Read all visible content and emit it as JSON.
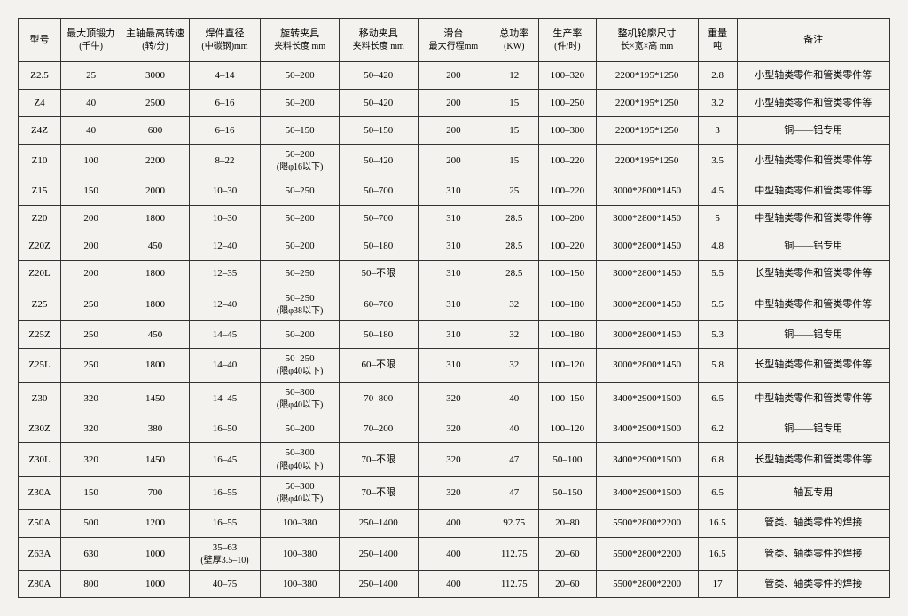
{
  "table": {
    "columns": [
      "型号",
      "最大顶锻力\n(千牛)",
      "主轴最高转速\n(转/分)",
      "焊件直径\n(中碳钢)mm",
      "旋转夹具\n夹料长度 mm",
      "移动夹具\n夹料长度 mm",
      "滑台\n最大行程mm",
      "总功率\n(KW)",
      "生产率\n(件/时)",
      "整机轮廓尺寸\n长×宽×高 mm",
      "重量\n吨",
      "备注"
    ],
    "rows": [
      [
        "Z2.5",
        "25",
        "3000",
        "4–14",
        "50–200",
        "50–420",
        "200",
        "12",
        "100–320",
        "2200*195*1250",
        "2.8",
        "小型轴类零件和管类零件等"
      ],
      [
        "Z4",
        "40",
        "2500",
        "6–16",
        "50–200",
        "50–420",
        "200",
        "15",
        "100–250",
        "2200*195*1250",
        "3.2",
        "小型轴类零件和管类零件等"
      ],
      [
        "Z4Z",
        "40",
        "600",
        "6–16",
        "50–150",
        "50–150",
        "200",
        "15",
        "100–300",
        "2200*195*1250",
        "3",
        "铜——铝专用"
      ],
      [
        "Z10",
        "100",
        "2200",
        "8–22",
        "50–200\n(限φ16以下)",
        "50–420",
        "200",
        "15",
        "100–220",
        "2200*195*1250",
        "3.5",
        "小型轴类零件和管类零件等"
      ],
      [
        "Z15",
        "150",
        "2000",
        "10–30",
        "50–250",
        "50–700",
        "310",
        "25",
        "100–220",
        "3000*2800*1450",
        "4.5",
        "中型轴类零件和管类零件等"
      ],
      [
        "Z20",
        "200",
        "1800",
        "10–30",
        "50–200",
        "50–700",
        "310",
        "28.5",
        "100–200",
        "3000*2800*1450",
        "5",
        "中型轴类零件和管类零件等"
      ],
      [
        "Z20Z",
        "200",
        "450",
        "12–40",
        "50–200",
        "50–180",
        "310",
        "28.5",
        "100–220",
        "3000*2800*1450",
        "4.8",
        "铜——铝专用"
      ],
      [
        "Z20L",
        "200",
        "1800",
        "12–35",
        "50–250",
        "50–不限",
        "310",
        "28.5",
        "100–150",
        "3000*2800*1450",
        "5.5",
        "长型轴类零件和管类零件等"
      ],
      [
        "Z25",
        "250",
        "1800",
        "12–40",
        "50–250\n(限φ38以下)",
        "60–700",
        "310",
        "32",
        "100–180",
        "3000*2800*1450",
        "5.5",
        "中型轴类零件和管类零件等"
      ],
      [
        "Z25Z",
        "250",
        "450",
        "14–45",
        "50–200",
        "50–180",
        "310",
        "32",
        "100–180",
        "3000*2800*1450",
        "5.3",
        "铜——铝专用"
      ],
      [
        "Z25L",
        "250",
        "1800",
        "14–40",
        "50–250\n(限φ40以下)",
        "60–不限",
        "310",
        "32",
        "100–120",
        "3000*2800*1450",
        "5.8",
        "长型轴类零件和管类零件等"
      ],
      [
        "Z30",
        "320",
        "1450",
        "14–45",
        "50–300\n(限φ40以下)",
        "70–800",
        "320",
        "40",
        "100–150",
        "3400*2900*1500",
        "6.5",
        "中型轴类零件和管类零件等"
      ],
      [
        "Z30Z",
        "320",
        "380",
        "16–50",
        "50–200",
        "70–200",
        "320",
        "40",
        "100–120",
        "3400*2900*1500",
        "6.2",
        "铜——铝专用"
      ],
      [
        "Z30L",
        "320",
        "1450",
        "16–45",
        "50–300\n(限φ40以下)",
        "70–不限",
        "320",
        "47",
        "50–100",
        "3400*2900*1500",
        "6.8",
        "长型轴类零件和管类零件等"
      ],
      [
        "Z30A",
        "150",
        "700",
        "16–55",
        "50–300\n(限φ40以下)",
        "70–不限",
        "320",
        "47",
        "50–150",
        "3400*2900*1500",
        "6.5",
        "轴瓦专用"
      ],
      [
        "Z50A",
        "500",
        "1200",
        "16–55",
        "100–380",
        "250–1400",
        "400",
        "92.75",
        "20–80",
        "5500*2800*2200",
        "16.5",
        "管类、轴类零件的焊接"
      ],
      [
        "Z63A",
        "630",
        "1000",
        "35–63\n(壁厚3.5–10)",
        "100–380",
        "250–1400",
        "400",
        "112.75",
        "20–60",
        "5500*2800*2200",
        "16.5",
        "管类、轴类零件的焊接"
      ],
      [
        "Z80A",
        "800",
        "1000",
        "40–75",
        "100–380",
        "250–1400",
        "400",
        "112.75",
        "20–60",
        "5500*2800*2200",
        "17",
        "管类、轴类零件的焊接"
      ]
    ],
    "columnClasses": [
      "col0",
      "col1",
      "col2",
      "col3",
      "col4",
      "col5",
      "col6",
      "col7",
      "col8",
      "col9",
      "col10",
      "col11"
    ],
    "background_color": "#f3f2ef",
    "border_color": "#333333",
    "font_size_pt": 11
  }
}
